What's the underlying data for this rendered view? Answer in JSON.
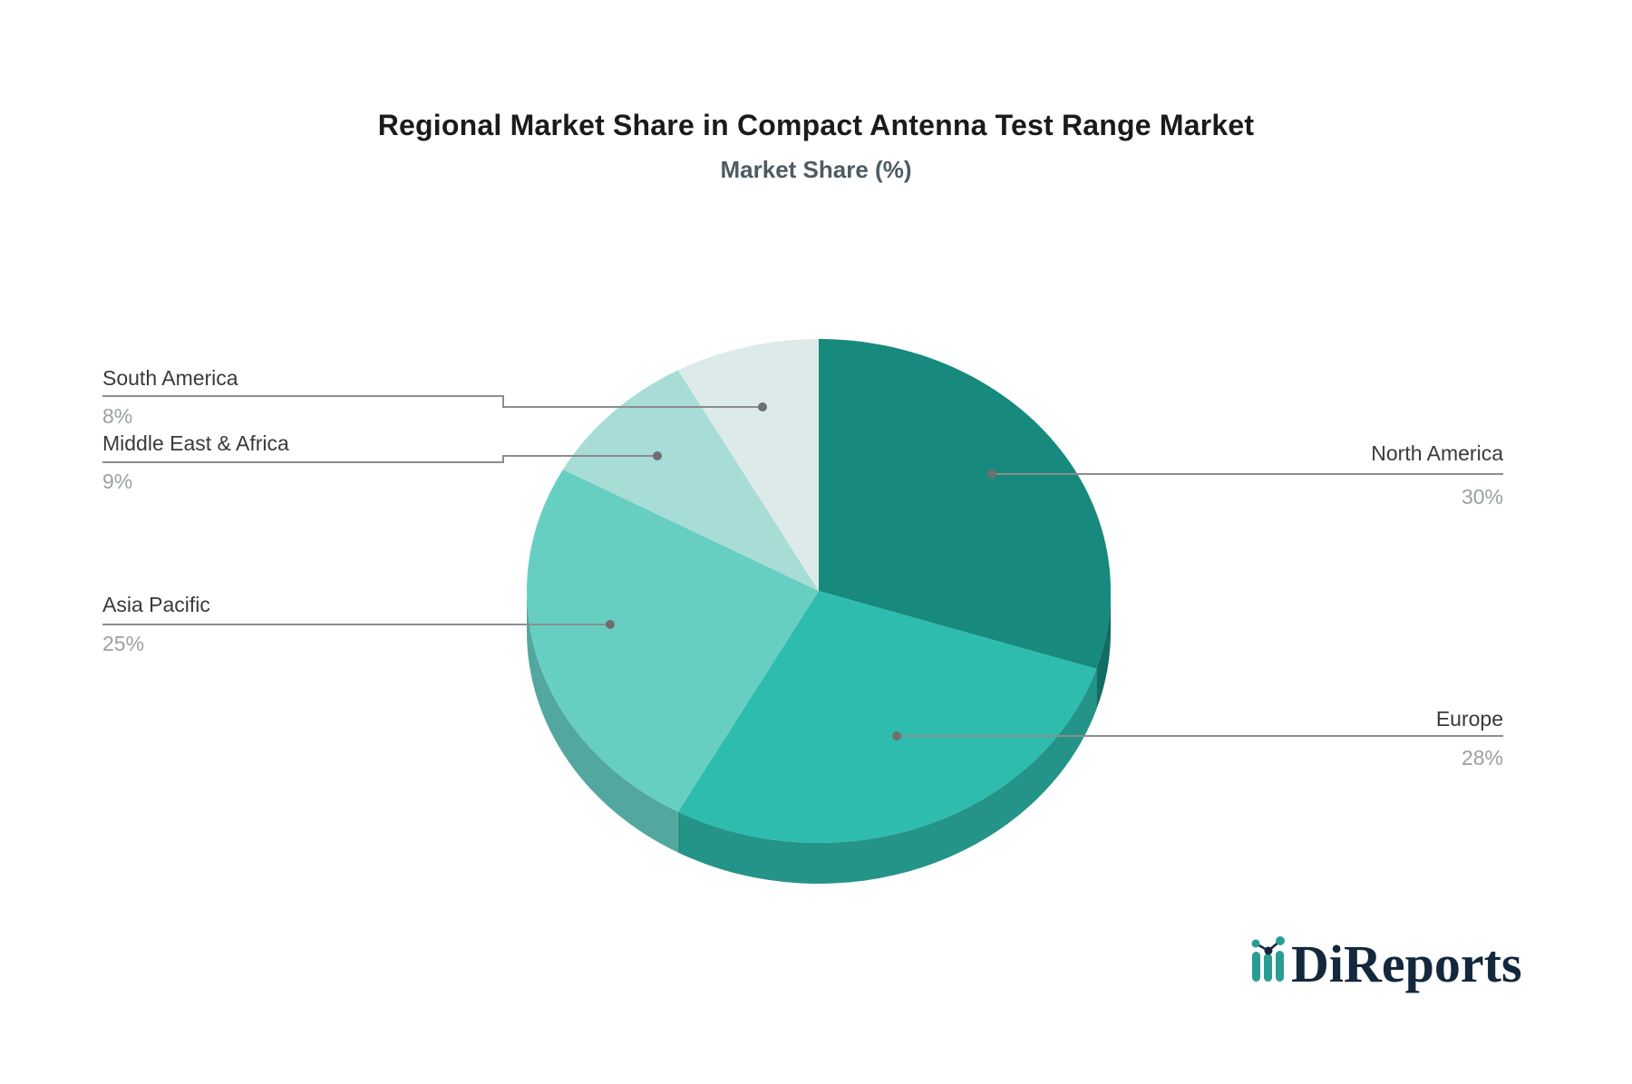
{
  "chart_data": {
    "type": "pie",
    "style": "3d",
    "title": "Regional Market Share in Compact Antenna Test Range Market",
    "subtitle": "Market Share (%)",
    "unit": "%",
    "start_angle_deg": 0,
    "direction": "clockwise",
    "legend_position": "callout-labels",
    "slices": [
      {
        "label": "North America",
        "value": 30,
        "pct_label": "30%",
        "color": "#17897d",
        "side_color": "#116d64"
      },
      {
        "label": "Europe",
        "value": 28,
        "pct_label": "28%",
        "color": "#2ebcae",
        "side_color": "#249489"
      },
      {
        "label": "Asia Pacific",
        "value": 25,
        "pct_label": "25%",
        "color": "#67cfc2",
        "side_color": "#52a89e"
      },
      {
        "label": "Middle East & Africa",
        "value": 9,
        "pct_label": "9%",
        "color": "#a8dcd6",
        "side_color": "#8ab5b0"
      },
      {
        "label": "South America",
        "value": 8,
        "pct_label": "8%",
        "color": "#dcebe9",
        "side_color": "#b4c4c2"
      }
    ],
    "colors": {
      "leader_line": "#8d8d8d",
      "leader_dot": "#6f6f6f",
      "label_text": "#3a3a3a",
      "value_text": "#9aa0a3"
    }
  },
  "logo": {
    "brand": "DiReports",
    "accent_color": "#2a9d93",
    "text_color": "#13283c"
  }
}
